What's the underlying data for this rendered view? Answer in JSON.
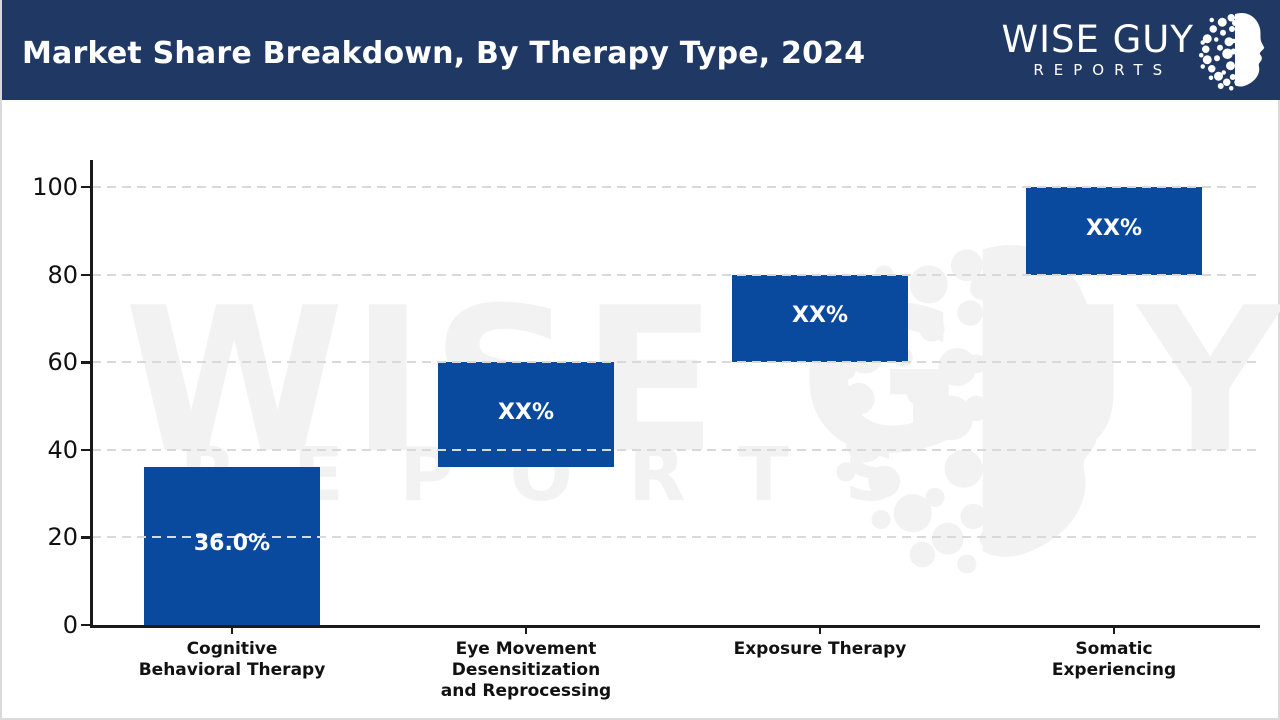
{
  "header": {
    "title": "Market Share Breakdown, By Therapy Type, 2024",
    "bg_color": "#1f3864",
    "logo": {
      "primary": "WISE GUY",
      "secondary": "REPORTS"
    }
  },
  "watermark": {
    "primary": "WISE GUY",
    "secondary": "REPORTS"
  },
  "chart_data": {
    "type": "bar",
    "subtype": "waterfall",
    "title": "Market Share Breakdown, By Therapy Type, 2024",
    "xlabel": "",
    "ylabel": "",
    "ylim": [
      0,
      106
    ],
    "grid": true,
    "gridline_values": [
      20,
      40,
      60,
      80,
      100
    ],
    "y_ticks": [
      0,
      20,
      40,
      60,
      80,
      100
    ],
    "bar_color": "#0a4a9e",
    "label_color": "#ffffff",
    "categories": [
      "Cognitive Behavioral Therapy",
      "Eye Movement Desensitization and Reprocessing",
      "Exposure Therapy",
      "Somatic Experiencing"
    ],
    "categories_lines": [
      [
        "Cognitive",
        "Behavioral Therapy"
      ],
      [
        "Eye Movement",
        "Desensitization",
        "and Reprocessing"
      ],
      [
        "Exposure Therapy"
      ],
      [
        "Somatic",
        "Experiencing"
      ]
    ],
    "values": [
      36,
      24,
      20,
      20
    ],
    "segments": [
      {
        "start": 0,
        "end": 36,
        "label": "36.0%"
      },
      {
        "start": 36,
        "end": 60,
        "label": "XX%"
      },
      {
        "start": 60,
        "end": 80,
        "label": "XX%"
      },
      {
        "start": 80,
        "end": 100,
        "label": "XX%"
      }
    ],
    "legend": null
  },
  "colors": {
    "header_navy": "#1f3864",
    "bar_blue": "#0a4a9e",
    "grid_gray": "#d9d9d9",
    "axis_black": "#1a1a1a",
    "watermark_gray": "#f2f2f2"
  }
}
